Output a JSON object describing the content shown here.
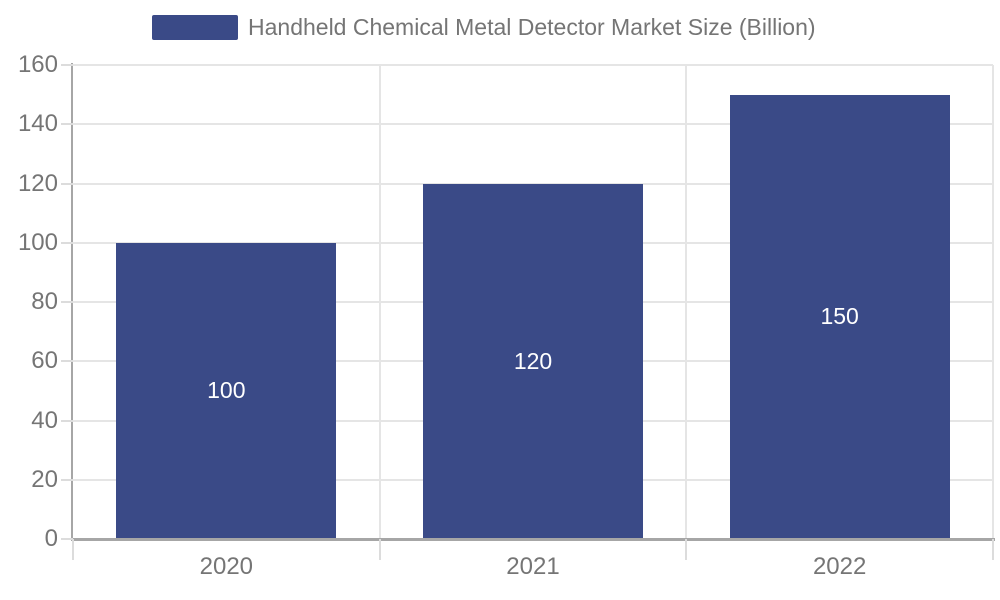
{
  "legend": {
    "label": "Handheld Chemical Metal Detector Market Size (Billion)"
  },
  "chart_data": {
    "type": "bar",
    "title": "Handheld Chemical Metal Detector Market Size (Billion)",
    "categories": [
      "2020",
      "2021",
      "2022"
    ],
    "series": [
      {
        "name": "Handheld Chemical Metal Detector Market Size (Billion)",
        "values": [
          100,
          120,
          150
        ]
      }
    ],
    "values": [
      100,
      120,
      150
    ],
    "data_labels": [
      "100",
      "120",
      "150"
    ],
    "xlabel": "",
    "ylabel": "",
    "ylim": [
      0,
      160
    ],
    "yticks": [
      0,
      20,
      40,
      60,
      80,
      100,
      120,
      140,
      160
    ],
    "grid": true,
    "legend_position": "top-left"
  },
  "colors": {
    "bar": "#3A4A87",
    "axis_label": "#757575",
    "legend_label": "#757575",
    "data_label": "#FFFFFF",
    "grid_line": "#E5E5E5",
    "tick_line": "#DCDCDC",
    "axis_line": "#A6A6A6",
    "background": "#FFFFFF"
  }
}
